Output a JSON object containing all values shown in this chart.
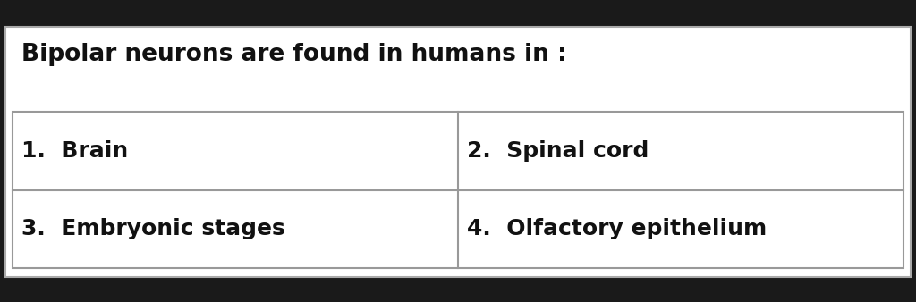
{
  "title": "Bipolar neurons are found in humans in :",
  "options": [
    [
      "1.  Brain",
      "2.  Spinal cord"
    ],
    [
      "3.  Embryonic stages",
      "4.  Olfactory epithelium"
    ]
  ],
  "bg_color": "#ffffff",
  "outer_bg": "#1a1a1a",
  "title_color": "#111111",
  "table_border_color": "#999999",
  "cell_bg": "#ffffff",
  "title_fontsize": 19,
  "option_fontsize": 18,
  "fig_width": 10.24,
  "fig_height": 3.38
}
